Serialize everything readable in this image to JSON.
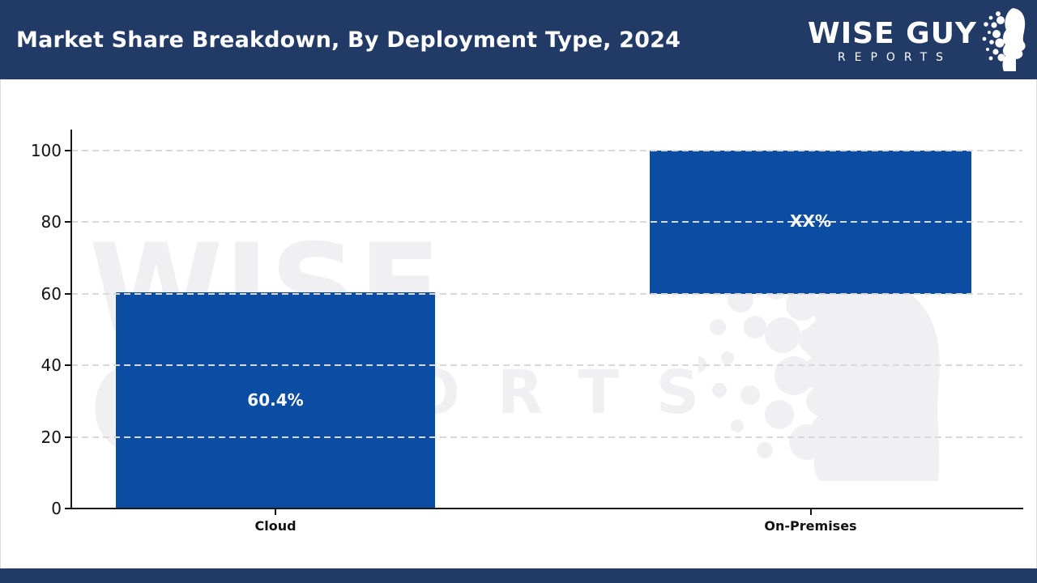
{
  "header": {
    "title": "Market Share Breakdown, By Deployment Type, 2024",
    "logo": {
      "wordmark": "WISE GUY",
      "subtitle": "REPORTS"
    }
  },
  "watermark": {
    "wordmark": "WISE GUY",
    "subtitle": "REPORTS"
  },
  "chart_data": {
    "type": "bar",
    "title": "Market Share Breakdown, By Deployment Type, 2024",
    "categories": [
      "Cloud",
      "On-Premises"
    ],
    "bars": [
      {
        "category": "Cloud",
        "start": 0,
        "end": 60.4,
        "label": "60.4%"
      },
      {
        "category": "On-Premises",
        "start": 60,
        "end": 100,
        "label": "XX%"
      }
    ],
    "yticks": [
      0,
      20,
      40,
      60,
      80,
      100
    ],
    "ylim": [
      0,
      105
    ],
    "xlabel": "",
    "ylabel": "",
    "grid": "horizontal-dashed",
    "legend": "none",
    "bar_color": "#0b4da2",
    "axis_color": "#1a1a1a",
    "grid_color": "#d9d9d9"
  },
  "colors": {
    "header_bg": "#213a66",
    "footer_bg": "#213a66",
    "watermark": "#f0f0f2",
    "label_text": "#ffffff"
  }
}
